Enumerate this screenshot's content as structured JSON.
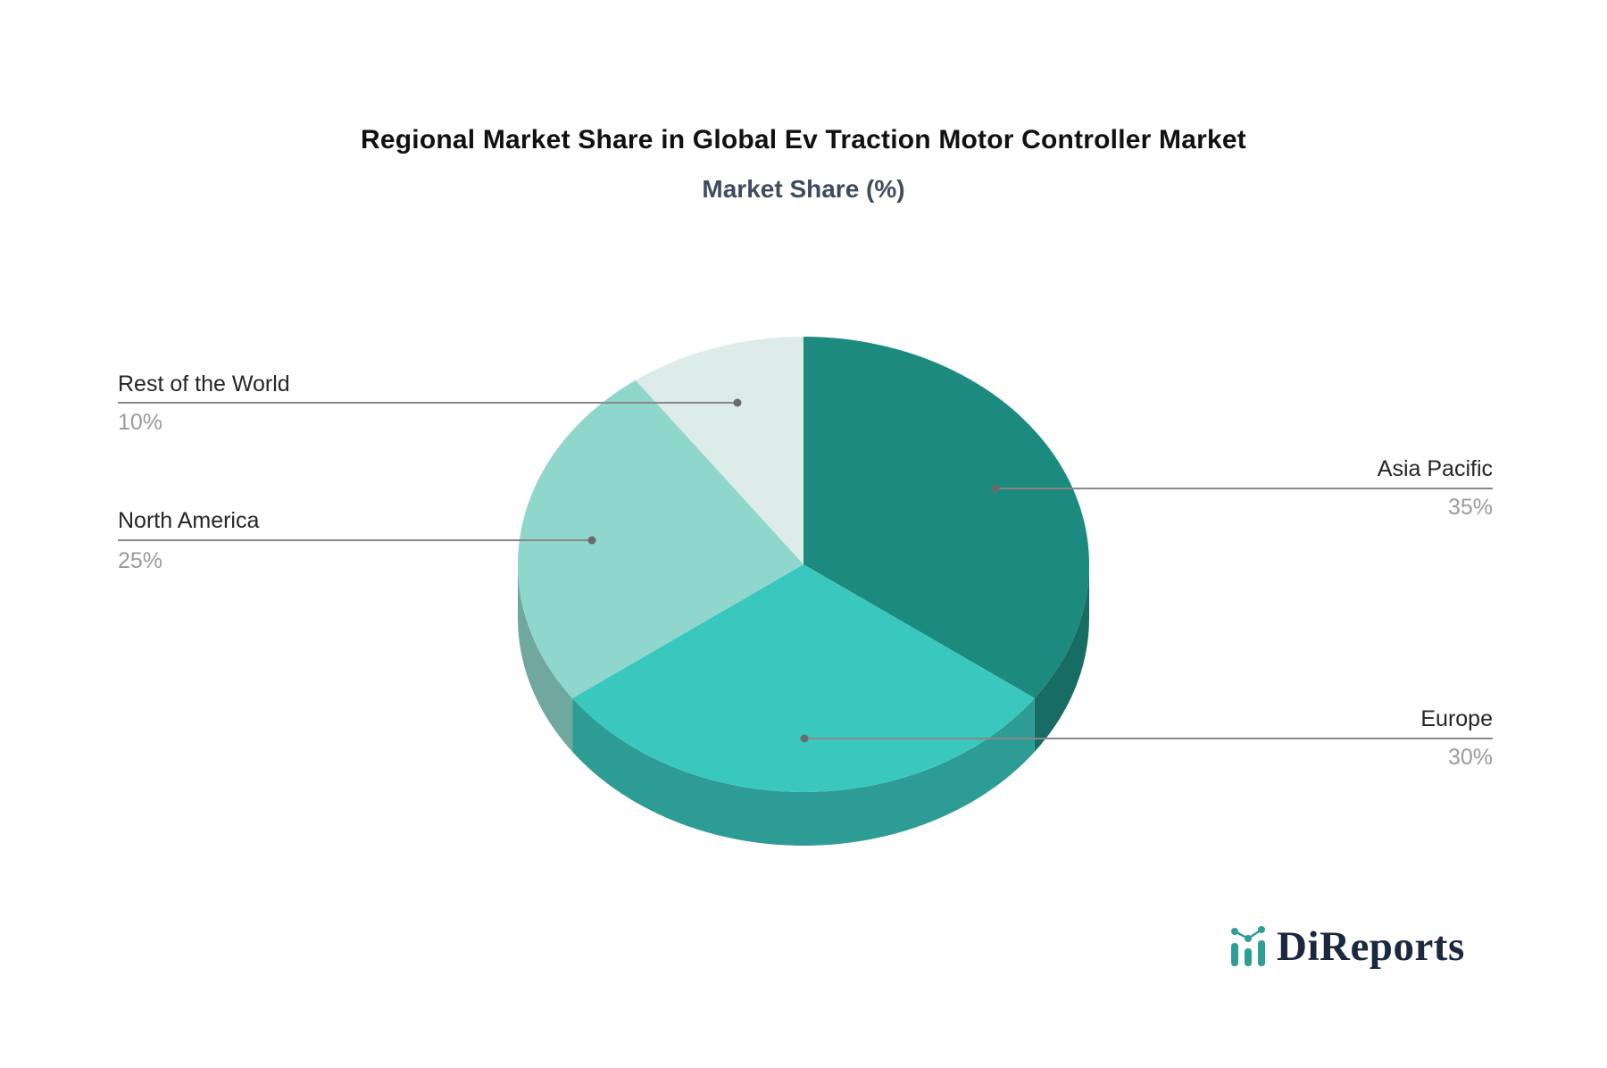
{
  "chart_data": {
    "type": "pie",
    "title": "Regional Market Share in Global Ev Traction Motor Controller Market",
    "subtitle": "Market Share (%)",
    "unit": "%",
    "effect_3d": true,
    "start_angle": "12-oclock-clockwise",
    "legend_position": "callout-labels",
    "slices": [
      {
        "label": "Asia Pacific",
        "value": 35,
        "pct_label": "35%",
        "color": "#1d8a80",
        "callout_side": "right"
      },
      {
        "label": "Europe",
        "value": 30,
        "pct_label": "30%",
        "color": "#3ac8be",
        "callout_side": "right"
      },
      {
        "label": "North America",
        "value": 25,
        "pct_label": "25%",
        "color": "#8fd6cc",
        "callout_side": "left"
      },
      {
        "label": "Rest of the World",
        "value": 10,
        "pct_label": "10%",
        "color": "#ddece9",
        "callout_side": "left"
      }
    ]
  },
  "styles": {
    "title_color": "#111111",
    "subtitle_color": "#3e4c5e",
    "label_name_color": "#262626",
    "label_pct_color": "#9b9b9b",
    "callout_line_color": "#888888",
    "callout_dot_color": "#6a6a6a",
    "side_shade_factor": 0.78
  },
  "logo": {
    "text": "DiReports",
    "icon": "bar-line-chart-icon",
    "text_color": "#1b2940",
    "icon_color": "#2f9e96"
  }
}
